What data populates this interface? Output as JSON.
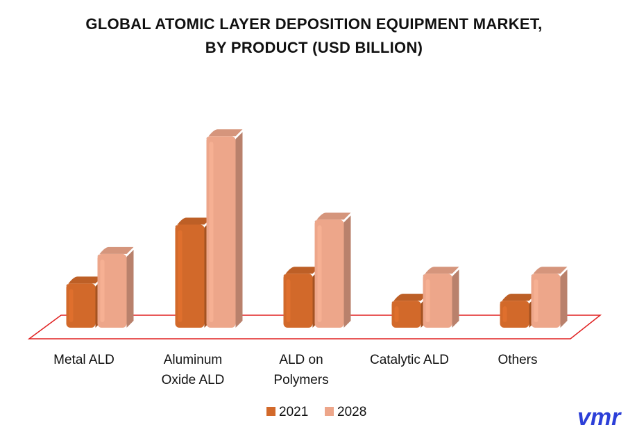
{
  "title_line1": "GLOBAL ATOMIC LAYER DEPOSITION EQUIPMENT MARKET,",
  "title_line2": "BY PRODUCT (USD BILLION)",
  "chart_data": {
    "type": "bar",
    "title": "GLOBAL ATOMIC LAYER DEPOSITION EQUIPMENT MARKET, BY PRODUCT (USD BILLION)",
    "categories": [
      [
        "Metal ALD"
      ],
      [
        "Aluminum",
        "Oxide ALD"
      ],
      [
        "ALD on",
        "Polymers"
      ],
      [
        "Catalytic ALD"
      ],
      [
        "Others"
      ]
    ],
    "series": [
      {
        "name": "2021",
        "color": "#d2692a",
        "values": [
          0.9,
          2.1,
          1.1,
          0.55,
          0.55
        ]
      },
      {
        "name": "2028",
        "color": "#eda68a",
        "values": [
          1.5,
          3.9,
          2.2,
          1.1,
          1.1
        ]
      }
    ],
    "ylim": [
      0,
      4.2
    ],
    "grid": false,
    "legend": "bottom-center",
    "floor_color": "#e02020"
  },
  "logo": {
    "text": "vmr",
    "color": "#2c3fd8"
  }
}
